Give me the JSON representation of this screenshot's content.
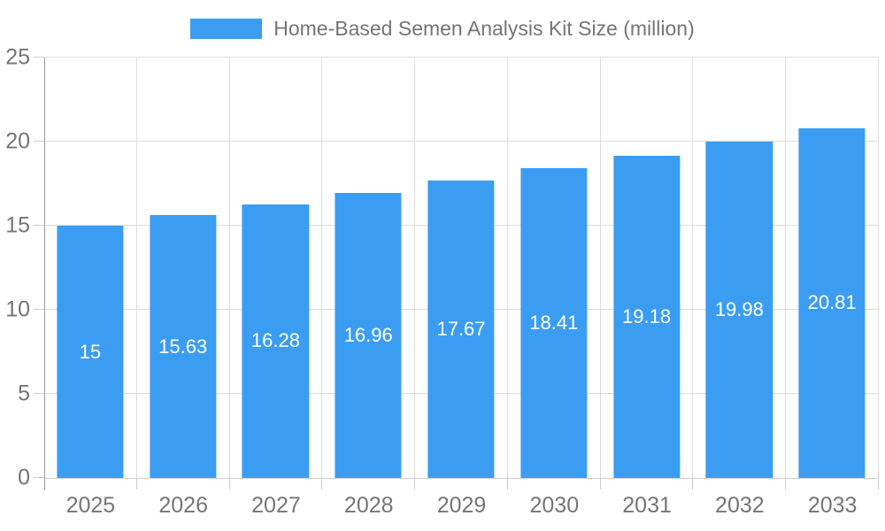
{
  "legend": {
    "label": "Home-Based Semen Analysis Kit Size (million)"
  },
  "chart_data": {
    "type": "bar",
    "title": "Home-Based Semen Analysis Kit Size (million)",
    "categories": [
      "2025",
      "2026",
      "2027",
      "2028",
      "2029",
      "2030",
      "2031",
      "2032",
      "2033"
    ],
    "values": [
      15,
      15.63,
      16.28,
      16.96,
      17.67,
      18.41,
      19.18,
      19.98,
      20.81
    ],
    "bar_labels": [
      "15",
      "15.63",
      "16.28",
      "16.96",
      "17.67",
      "18.41",
      "19.18",
      "19.98",
      "20.81"
    ],
    "xlabel": "",
    "ylabel": "",
    "ylim": [
      0,
      25
    ],
    "yticks": [
      0,
      5,
      10,
      15,
      20,
      25
    ],
    "grid": true,
    "legend_position": "top-center"
  },
  "colors": {
    "bar": "#3b9df2",
    "bar_label": "#ffffff",
    "text": "#757575",
    "grid": "#dddddd",
    "tick": "#cccccc",
    "axis_y": "#999999",
    "axis_x": "#cccccc",
    "background": "#ffffff"
  }
}
